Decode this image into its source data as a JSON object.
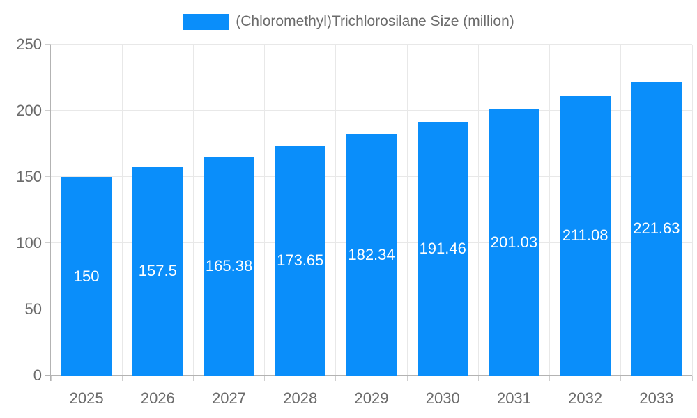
{
  "chart_data": {
    "type": "bar",
    "title": "(Chloromethyl)Trichlorosilane Size (million)",
    "legend_position": "top",
    "categories": [
      "2025",
      "2026",
      "2027",
      "2028",
      "2029",
      "2030",
      "2031",
      "2032",
      "2033"
    ],
    "values": [
      150,
      157.5,
      165.38,
      173.65,
      182.34,
      191.46,
      201.03,
      211.08,
      221.63
    ],
    "value_labels": [
      "150",
      "157.5",
      "165.38",
      "173.65",
      "182.34",
      "191.46",
      "201.03",
      "211.08",
      "221.63"
    ],
    "xlabel": "",
    "ylabel": "",
    "ylim": [
      0,
      250
    ],
    "yticks": [
      0,
      50,
      100,
      150,
      200,
      250
    ],
    "grid": true,
    "colors": {
      "bar": "#0a8efa",
      "grid": "#e8e8e8",
      "tick": "#cfcfcf",
      "axis": "#b3b3b3",
      "tick_text": "#6b6b6b",
      "bar_label": "#ffffff",
      "background": "#ffffff"
    }
  }
}
